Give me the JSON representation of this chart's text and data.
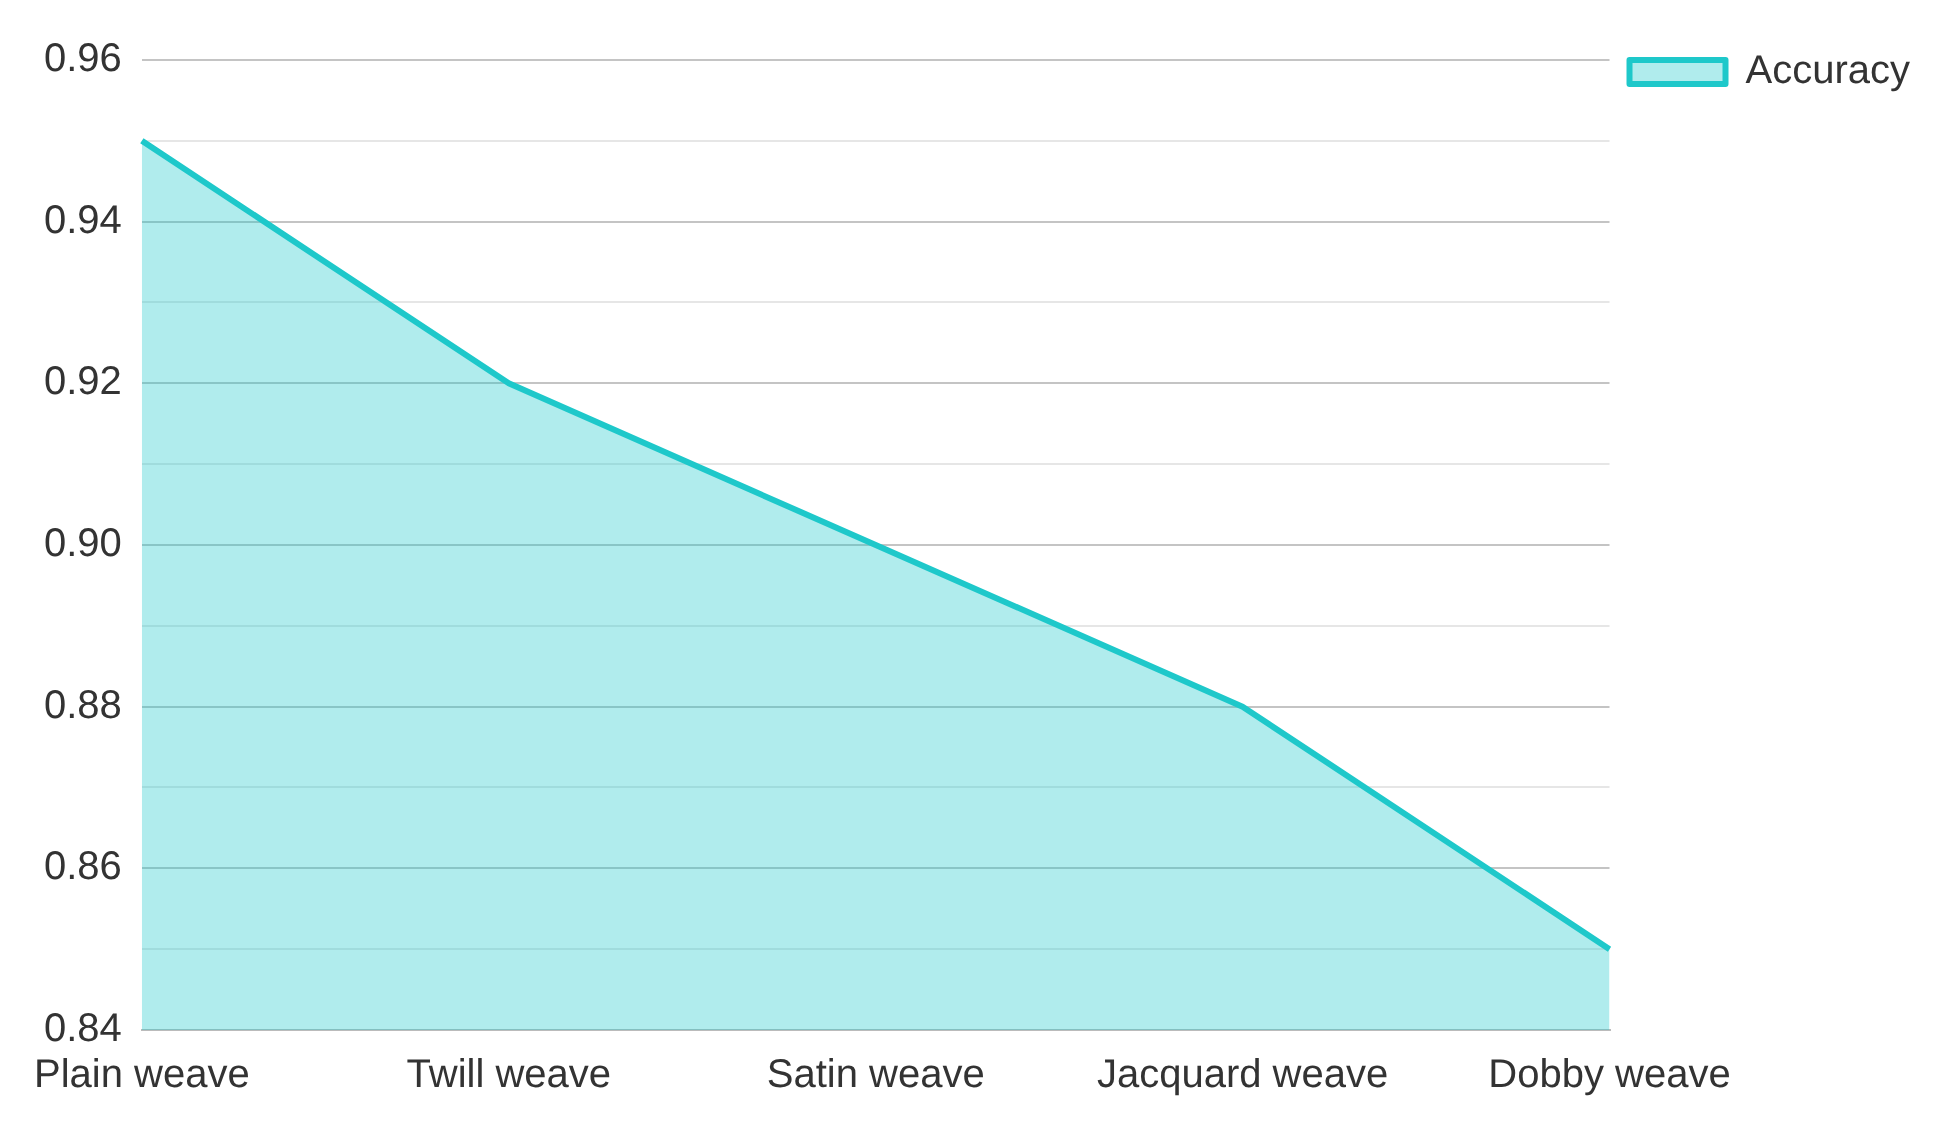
{
  "chart_data": {
    "type": "area",
    "categories": [
      "Plain weave",
      "Twill weave",
      "Satin weave",
      "Jacquard weave",
      "Dobby weave"
    ],
    "series": [
      {
        "name": "Accuracy",
        "color": "#1ec8ca",
        "values": [
          0.95,
          0.92,
          0.9,
          0.88,
          0.85
        ]
      }
    ],
    "ylim": [
      0.84,
      0.96
    ],
    "yticks": [
      0.84,
      {
        "value": 0.85,
        "label": null
      },
      0.86,
      {
        "value": 0.87,
        "label": null
      },
      0.88,
      {
        "value": 0.89,
        "label": null
      },
      {
        "value": 0.9,
        "label": "0.90"
      },
      {
        "value": 0.91,
        "label": null
      },
      0.92,
      {
        "value": 0.93,
        "label": null
      },
      0.94,
      {
        "value": 0.95,
        "label": null
      },
      0.96
    ],
    "grid": "y",
    "legend": "top right",
    "marker": "none",
    "line_style": "solid"
  }
}
